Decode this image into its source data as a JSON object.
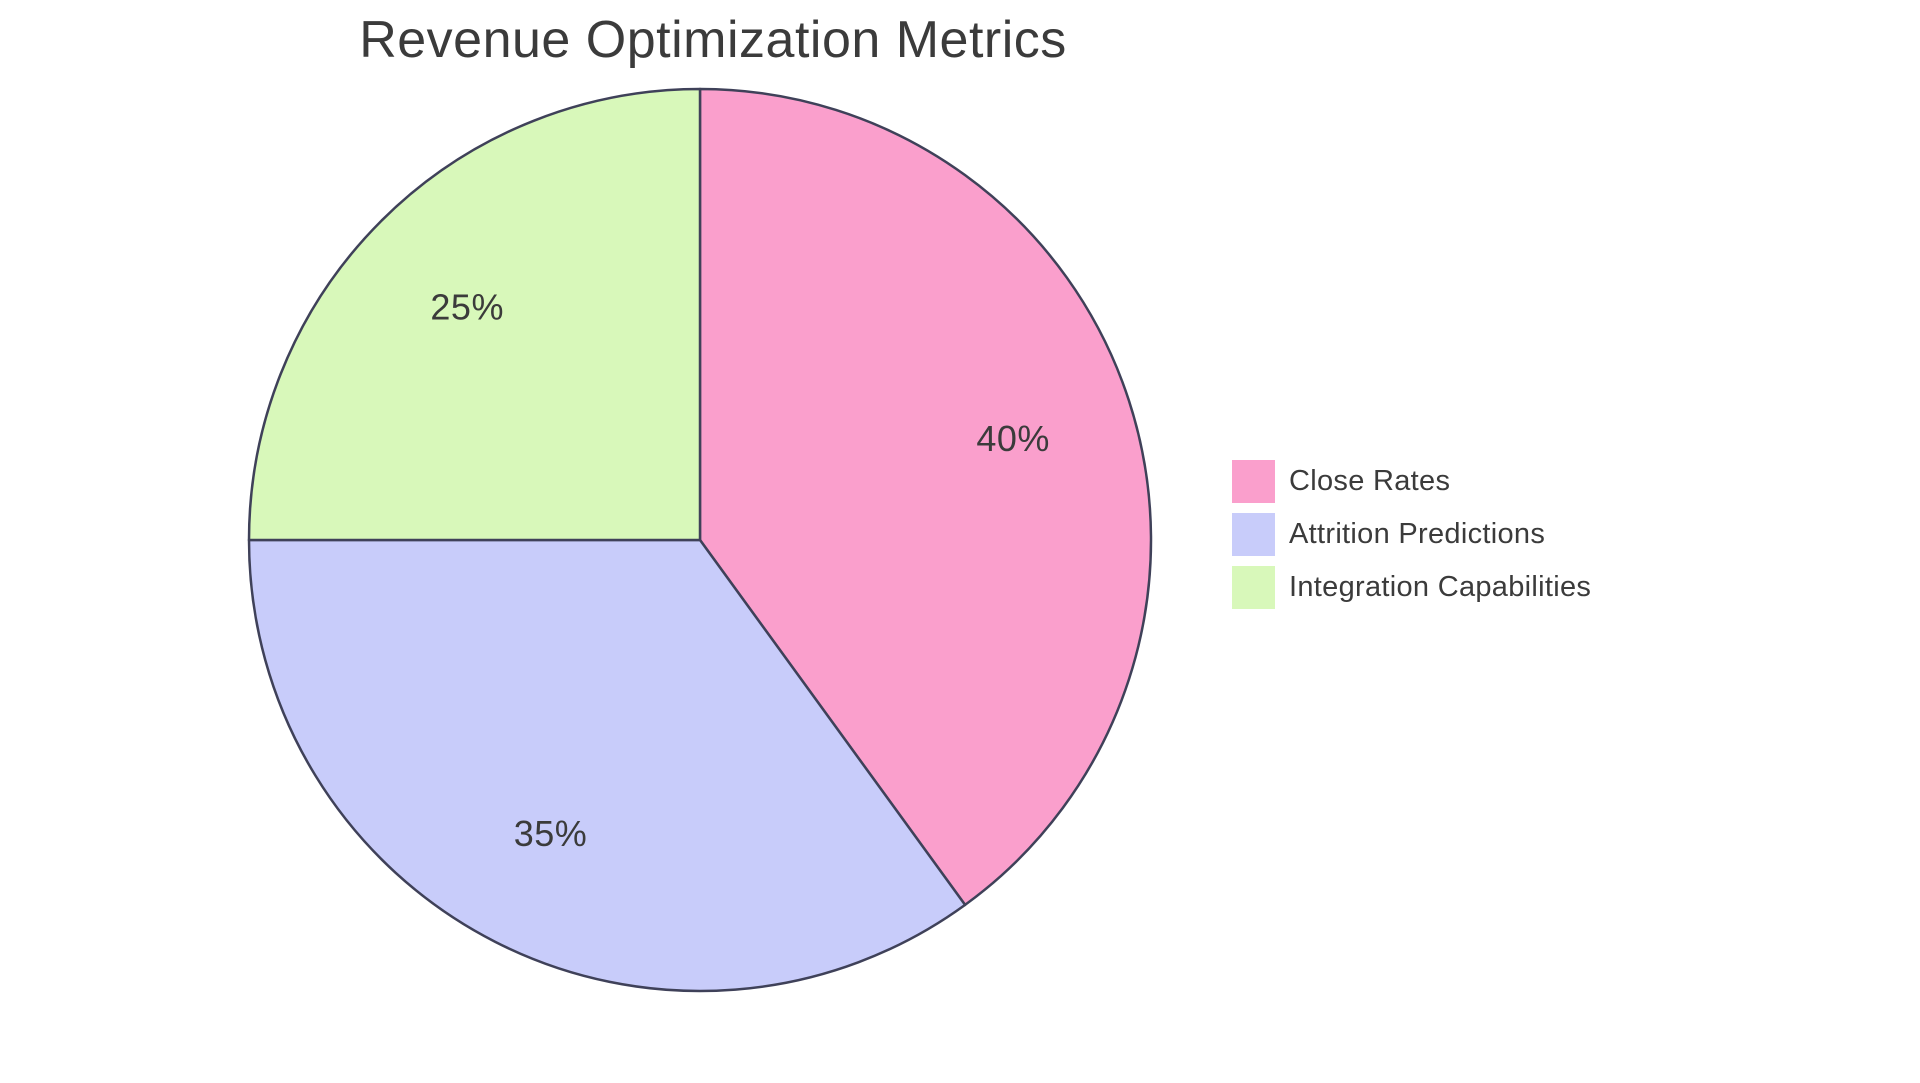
{
  "chart_data": {
    "type": "pie",
    "title": "Revenue Optimization Metrics",
    "categories": [
      "Close Rates",
      "Attrition Predictions",
      "Integration Capabilities"
    ],
    "values": [
      40,
      35,
      25
    ],
    "slice_labels": [
      "40%",
      "35%",
      "25%"
    ],
    "colors": [
      "#FA9FCC",
      "#C8CCFA",
      "#D8F8BA"
    ],
    "stroke_color": "#3F4159",
    "text_color": "#3B3B3B",
    "start_angle": "top",
    "direction": "clockwise",
    "labels_inside": true,
    "legend_position": "right",
    "legend_order": [
      "Close Rates",
      "Attrition Predictions",
      "Integration Capabilities"
    ]
  }
}
